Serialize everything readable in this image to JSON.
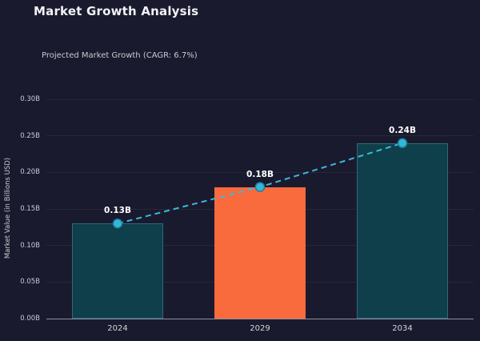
{
  "chart_data": {
    "type": "bar",
    "title": "Market Growth Analysis",
    "subtitle": "Projected Market Growth (CAGR: 6.7%)",
    "categories": [
      "2024",
      "2029",
      "2034"
    ],
    "values": [
      0.13,
      0.18,
      0.24
    ],
    "value_labels": [
      "0.13B",
      "0.18B",
      "0.24B"
    ],
    "xlabel": "",
    "ylabel": "Market Value (in Billions USD)",
    "ylim": [
      0,
      0.3
    ],
    "ytick_labels": [
      "0.00B",
      "0.05B",
      "0.10B",
      "0.15B",
      "0.20B",
      "0.25B",
      "0.30B"
    ],
    "grid": true,
    "legend": false,
    "overlay": {
      "type": "line",
      "style": "dashed-with-markers",
      "values": [
        0.13,
        0.18,
        0.24
      ]
    },
    "colors": {
      "background": "#1a1a2e",
      "bar_fill": [
        "#0f3f4a",
        "#f96a3d",
        "#0f3f4a"
      ],
      "bar_edge": [
        "#2a6b7c",
        "#f96a3d",
        "#2a6b7c"
      ],
      "trend_line": "#3cb8da",
      "marker_fill": "#35b6d9",
      "marker_edge": "#1b7f9e",
      "value_label_text": "#ffffff",
      "axis_text": "#c9c9d2"
    }
  }
}
